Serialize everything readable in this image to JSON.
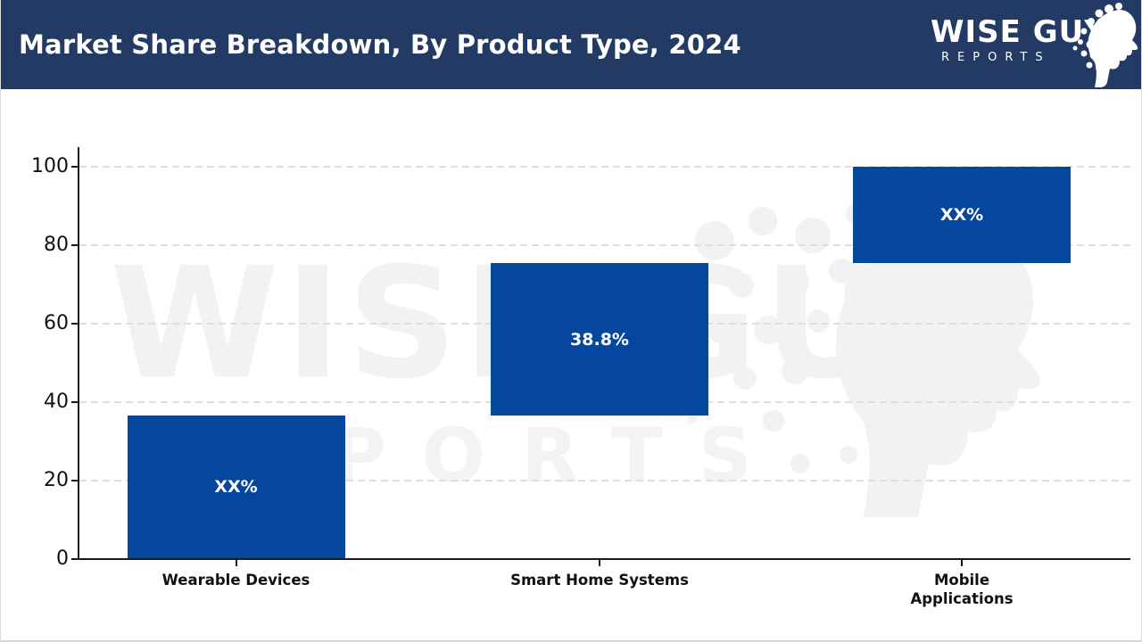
{
  "header": {
    "title": "Market Share Breakdown, By Product Type, 2024",
    "logo": {
      "line1": "WISE GUY",
      "line2": "REPORTS"
    }
  },
  "watermark": {
    "line1": "WISE GUY",
    "line2": "REPORTS"
  },
  "chart_data": {
    "type": "bar",
    "subtype": "floating-stacked-waterfall",
    "title": "Market Share Breakdown, By Product Type, 2024",
    "categories": [
      "Wearable Devices",
      "Smart Home Systems",
      "Mobile\nApplications"
    ],
    "bars": [
      {
        "category": "Wearable Devices",
        "label": "XX%",
        "start": 0,
        "end": 36.6
      },
      {
        "category": "Smart Home Systems",
        "label": "38.8%",
        "start": 36.6,
        "end": 75.4
      },
      {
        "category": "Mobile Applications",
        "label": "XX%",
        "start": 75.4,
        "end": 100
      }
    ],
    "yticks": [
      0,
      20,
      40,
      60,
      80,
      100
    ],
    "ylim": [
      0,
      105
    ],
    "xlabel": "",
    "ylabel": "",
    "grid": "dashed-horizontal",
    "legend": "none",
    "bar_color": "#05479E",
    "bar_label_color": "#ffffff",
    "axis_color": "#1a1a1a"
  }
}
